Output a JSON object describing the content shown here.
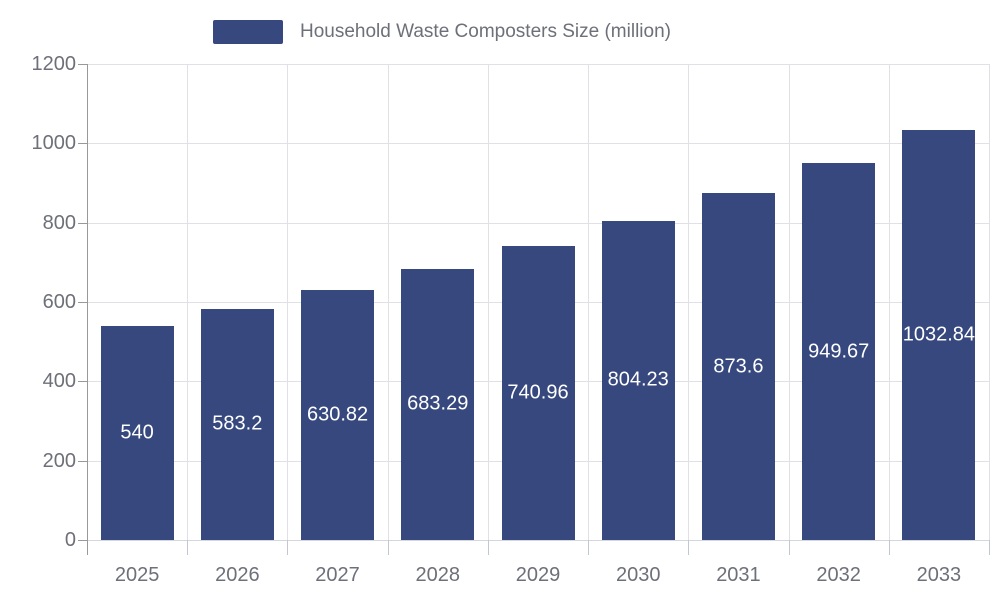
{
  "chart_data": {
    "type": "bar",
    "title": "Household Waste Composters Size (million)",
    "legend_label": "Household Waste Composters Size (million)",
    "legend_position": "top",
    "categories": [
      "2025",
      "2026",
      "2027",
      "2028",
      "2029",
      "2030",
      "2031",
      "2032",
      "2033"
    ],
    "values": [
      540,
      583.2,
      630.82,
      683.29,
      740.96,
      804.23,
      873.6,
      949.67,
      1032.84
    ],
    "value_labels": [
      "540",
      "583.2",
      "630.82",
      "683.29",
      "740.96",
      "804.23",
      "873.6",
      "949.67",
      "1032.84"
    ],
    "xlabel": "",
    "ylabel": "",
    "ylim": [
      0,
      1200
    ],
    "ytick_step": 200,
    "ytick_labels": [
      "0",
      "200",
      "400",
      "600",
      "800",
      "1000",
      "1200"
    ],
    "grid": true,
    "colors": {
      "bar": "#36487E",
      "value_label": "#FFFFFF",
      "axis_text": "#6E7079",
      "grid_line": "#E0E0E6",
      "baseline": "#D4D7DE",
      "axis_line": "#999999",
      "tick": "#C2C7D2",
      "background": "#FFFFFF"
    }
  }
}
